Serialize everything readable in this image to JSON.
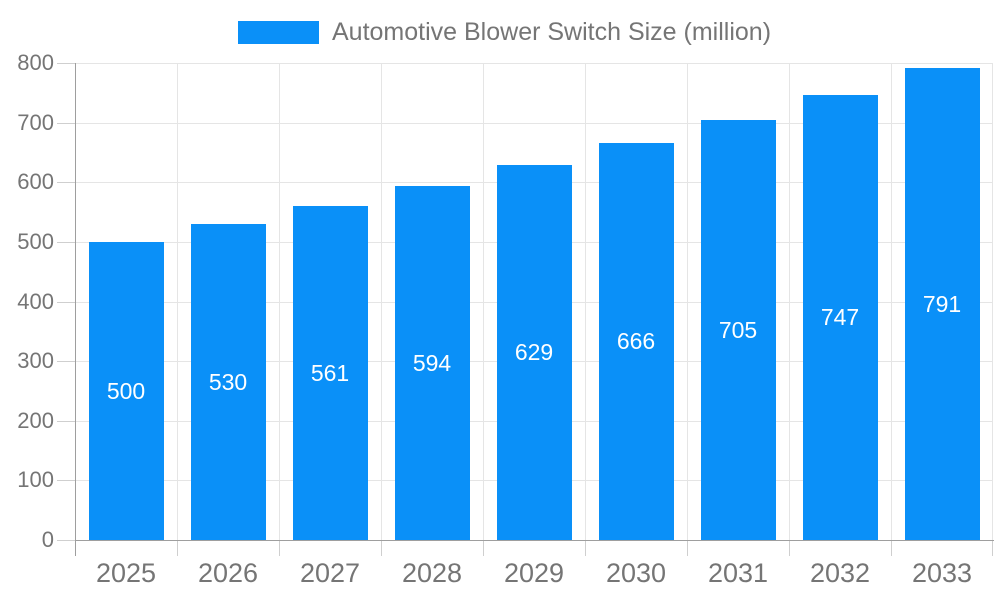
{
  "legend": {
    "swatch_color": "#0a90f8"
  },
  "chart_data": {
    "type": "bar",
    "title": "Automotive Blower Switch Size (million)",
    "categories": [
      "2025",
      "2026",
      "2027",
      "2028",
      "2029",
      "2030",
      "2031",
      "2032",
      "2033"
    ],
    "values": [
      500,
      530,
      561,
      594,
      629,
      666,
      705,
      747,
      791
    ],
    "xlabel": "",
    "ylabel": "",
    "ylim": [
      0,
      800
    ],
    "y_ticks": [
      0,
      100,
      200,
      300,
      400,
      500,
      600,
      700,
      800
    ],
    "grid": true,
    "legend_position": "top-center",
    "bar_labels_inside": true,
    "colors": {
      "bar": "#0a90f8",
      "gridline": "#e5e5e5",
      "axis": "#9e9e9e",
      "tick": "#cfcfcf",
      "axis_text": "#757575",
      "bar_label_text": "#ffffff",
      "background": "#ffffff"
    }
  }
}
